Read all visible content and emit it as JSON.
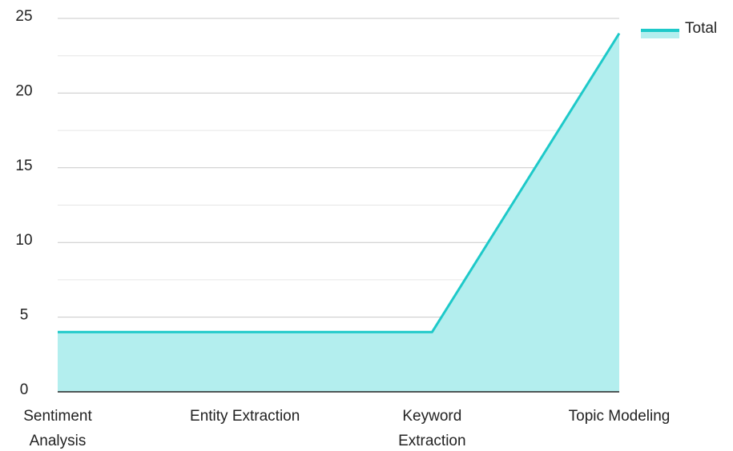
{
  "chart_data": {
    "type": "area",
    "categories": [
      "Sentiment Analysis",
      "Entity Extraction",
      "Keyword Extraction",
      "Topic Modeling"
    ],
    "series": [
      {
        "name": "Total",
        "color": "#1ec9c9",
        "fill": "#b3eeee",
        "values": [
          4,
          4,
          4,
          24
        ]
      }
    ],
    "ylim": [
      0,
      25
    ],
    "yticks": [
      0,
      5,
      10,
      15,
      20,
      25
    ],
    "yminorticks": [
      2.5,
      7.5,
      12.5,
      17.5,
      22.5
    ],
    "grid": true,
    "legend": "top-right"
  }
}
